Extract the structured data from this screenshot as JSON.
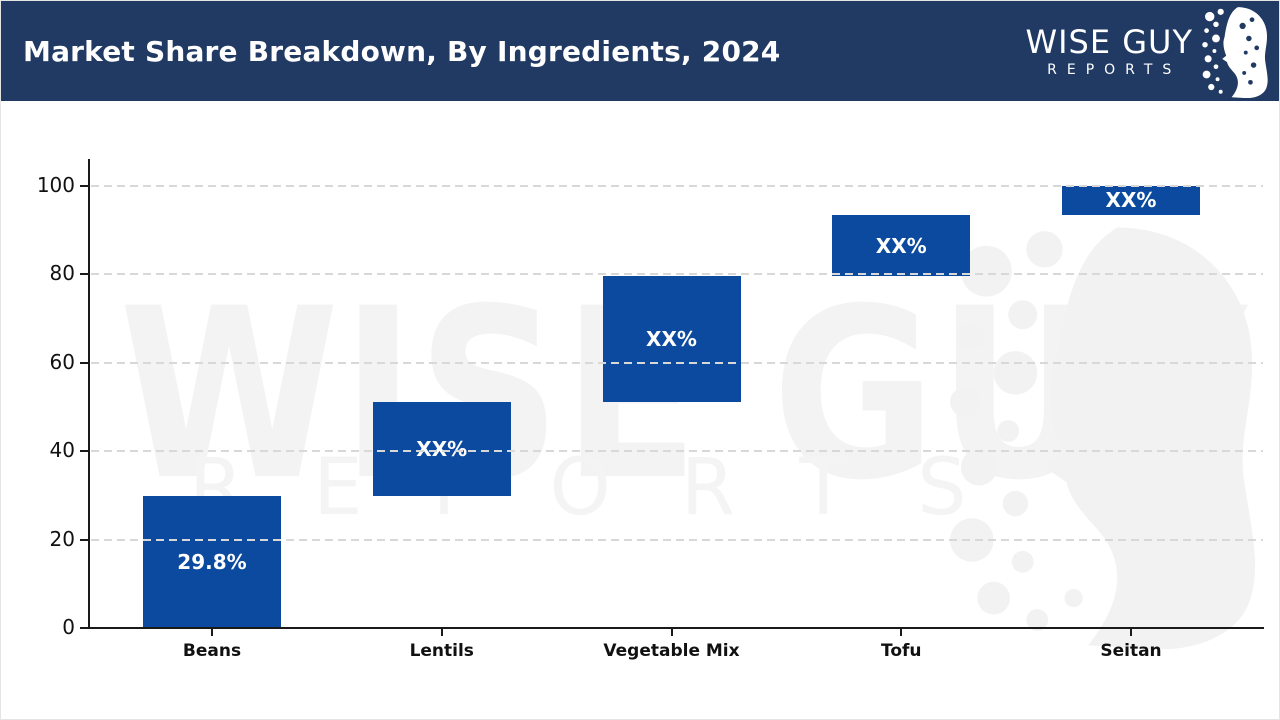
{
  "header": {
    "title": "Market Share Breakdown, By Ingredients, 2024",
    "background": "#213a64",
    "brand": {
      "line1": "WISE GUY",
      "line2": "REPORTS"
    }
  },
  "watermark": {
    "line1": "WISE GUY",
    "line2": "REPORTS"
  },
  "chart_data": {
    "type": "bar",
    "subtype": "waterfall",
    "title": "Market Share Breakdown, By Ingredients, 2024",
    "xlabel": "",
    "ylabel": "",
    "categories": [
      "Beans",
      "Lentils",
      "Vegetable Mix",
      "Tofu",
      "Seitan"
    ],
    "segments": [
      {
        "category": "Beans",
        "start": 0,
        "end": 29.8,
        "label": "29.8%"
      },
      {
        "category": "Lentils",
        "start": 29.8,
        "end": 51.0,
        "label": "XX%"
      },
      {
        "category": "Vegetable Mix",
        "start": 51.0,
        "end": 79.5,
        "label": "XX%"
      },
      {
        "category": "Tofu",
        "start": 79.5,
        "end": 93.3,
        "label": "XX%"
      },
      {
        "category": "Seitan",
        "start": 93.3,
        "end": 100,
        "label": "XX%"
      }
    ],
    "yticks": [
      0,
      20,
      40,
      60,
      80,
      100
    ],
    "ylim": [
      0,
      105
    ],
    "grid": "horizontal dashed, drawn over bars",
    "legend": "none",
    "bar_color": "#0b4a9e",
    "bar_label_color": "#ffffff",
    "axis_color": "#1a1a1a",
    "gridline_color": "#d8d8d8"
  }
}
